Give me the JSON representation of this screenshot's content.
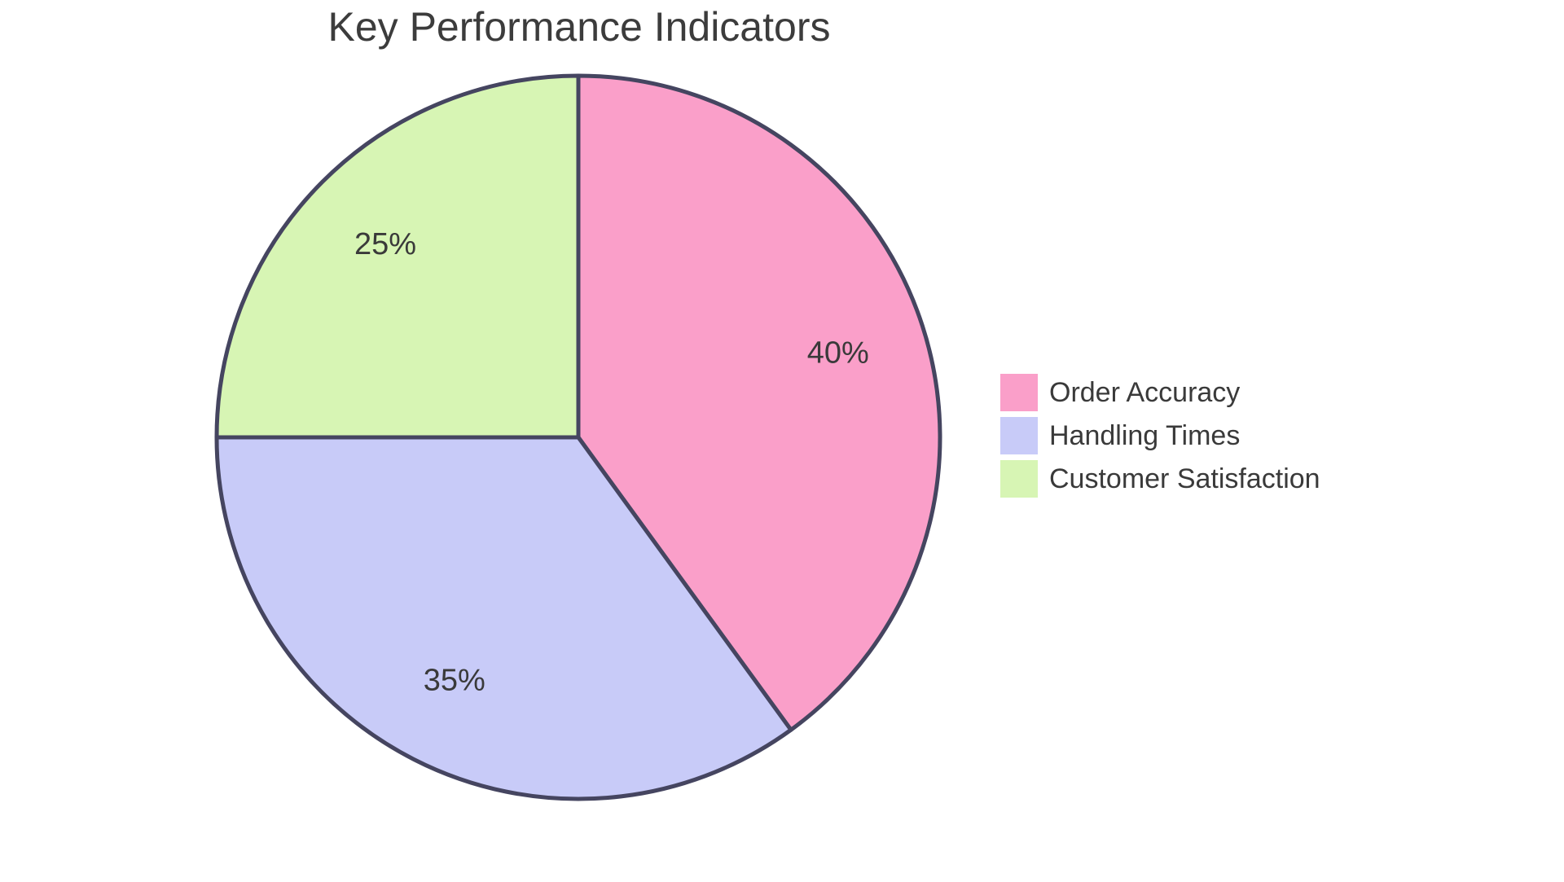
{
  "page": {
    "background_color": "#ffffff"
  },
  "chart_data": {
    "type": "pie",
    "title": "Key Performance Indicators",
    "title_color": "#3C3C3C",
    "label_color": "#3A3A3A",
    "edge_color": "#454560",
    "start_angle": "12 o'clock",
    "direction": "clockwise",
    "legend_position": "right",
    "slices": [
      {
        "label": "Order Accuracy",
        "value": 40,
        "pct_label": "40%",
        "color": "#FA9FC9"
      },
      {
        "label": "Handling Times",
        "value": 35,
        "pct_label": "35%",
        "color": "#C8CBF8"
      },
      {
        "label": "Customer Satisfaction",
        "value": 25,
        "pct_label": "25%",
        "color": "#D7F5B4"
      }
    ]
  }
}
